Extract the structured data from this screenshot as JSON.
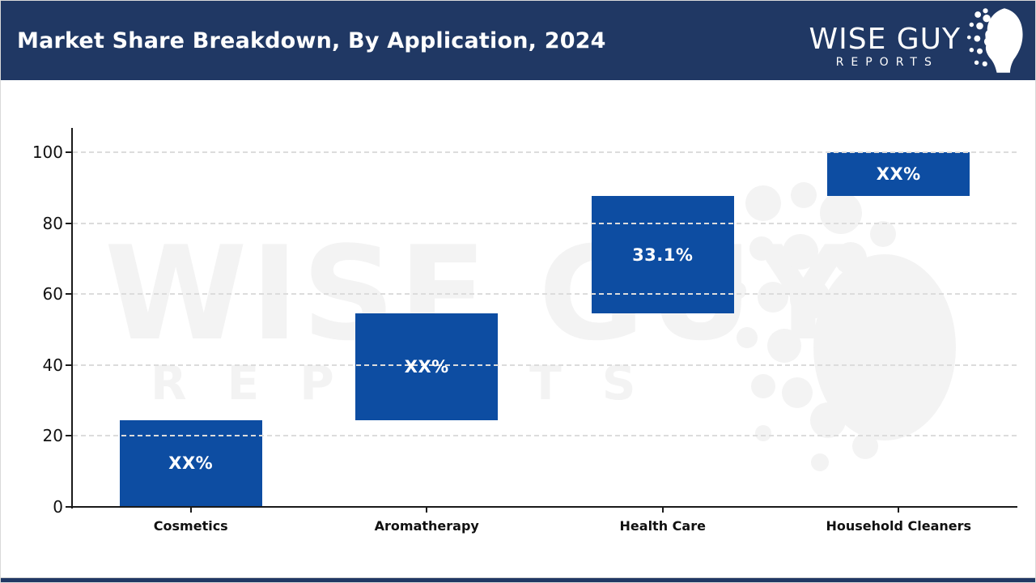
{
  "header": {
    "title": "Market Share Breakdown, By Application, 2024",
    "logo": {
      "line1": "WISE GUY",
      "line2": "REPORTS"
    }
  },
  "watermark": {
    "line1": "WISE GUY",
    "line2": "REPORTS"
  },
  "chart_data": {
    "type": "bar",
    "subtype": "waterfall-floating-segments",
    "title": "Market Share Breakdown, By Application, 2024",
    "categories": [
      "Cosmetics",
      "Aromatherapy",
      "Health Care",
      "Household Cleaners"
    ],
    "series": [
      {
        "name": "Market share segment (%)",
        "starts": [
          0,
          24.5,
          54.5,
          87.6
        ],
        "ends": [
          24.5,
          54.5,
          87.6,
          100
        ],
        "labels": [
          "XX%",
          "XX%",
          "33.1%",
          "XX%"
        ]
      }
    ],
    "ylim": [
      0,
      100
    ],
    "yticks": [
      0,
      20,
      40,
      60,
      80,
      100
    ],
    "grid": "horizontal-dashed",
    "legend": "none",
    "bar_color": "#0d4da2",
    "bar_label_color": "#ffffff"
  },
  "colors": {
    "header_bg": "#203864",
    "footer_bg": "#203864",
    "watermark": "#f3f3f3",
    "axis": "#1a1a1a",
    "gridline": "#dcdcdc"
  }
}
